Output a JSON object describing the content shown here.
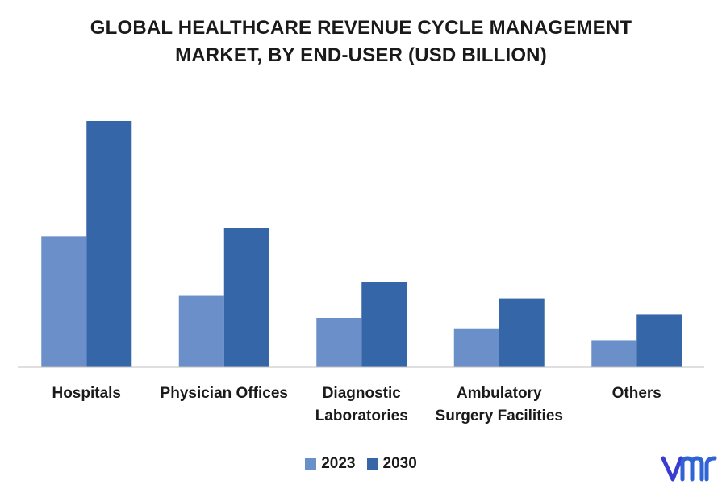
{
  "chart_data": {
    "type": "bar",
    "title_lines": [
      "GLOBAL HEALTHCARE REVENUE CYCLE MANAGEMENT",
      "MARKET, BY END-USER (USD BILLION)"
    ],
    "categories": [
      [
        "Hospitals"
      ],
      [
        "Physician Offices"
      ],
      [
        "Diagnostic",
        "Laboratories"
      ],
      [
        "Ambulatory",
        "Surgery Facilities"
      ],
      [
        "Others"
      ]
    ],
    "series": [
      {
        "name": "2023",
        "color": "#6a8fc9",
        "values": [
          53,
          29,
          20,
          15.5,
          11
        ]
      },
      {
        "name": "2030",
        "color": "#3566a8",
        "values": [
          100,
          56.5,
          34.5,
          28,
          21.5
        ]
      }
    ],
    "ylim": [
      0,
      100
    ],
    "axis_labels_shown": false,
    "gridlines": false,
    "legend_position": "bottom-center"
  },
  "brand": {
    "logo_icon": "vmr-logo-icon",
    "colors": {
      "v": "#3a3bd1",
      "mr": "#2f63d6"
    }
  }
}
